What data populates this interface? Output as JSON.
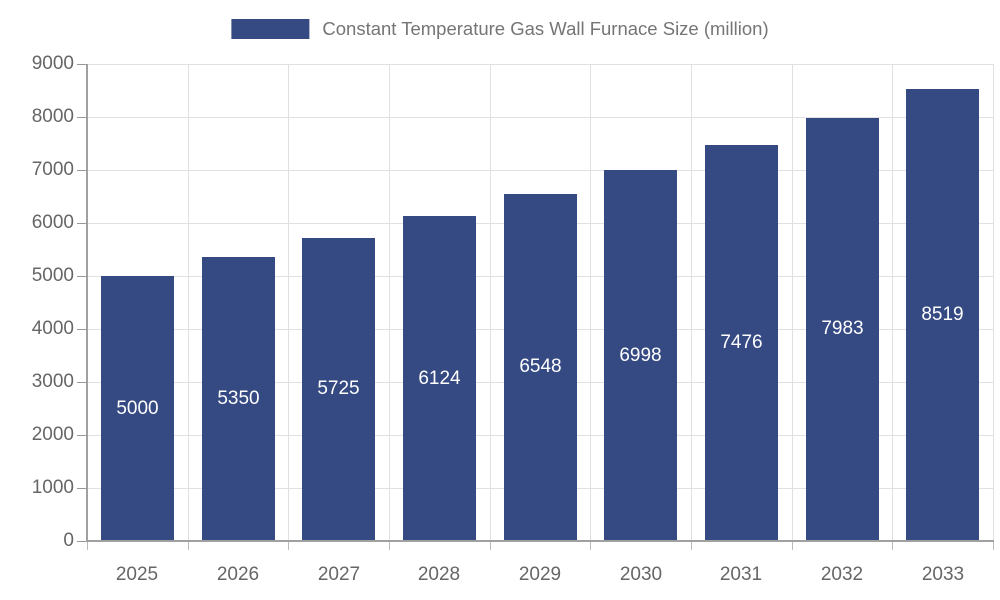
{
  "chart_data": {
    "type": "bar",
    "title": "Constant Temperature Gas Wall Furnace Size (million)",
    "legend": [
      "Constant Temperature Gas Wall Furnace Size (million)"
    ],
    "legend_position": "top",
    "categories": [
      "2025",
      "2026",
      "2027",
      "2028",
      "2029",
      "2030",
      "2031",
      "2032",
      "2033"
    ],
    "values": [
      5000,
      5350,
      5725,
      6124,
      6548,
      6998,
      7476,
      7983,
      8519
    ],
    "xlabel": "",
    "ylabel": "",
    "ylim": [
      0,
      9000
    ],
    "yticks": [
      0,
      1000,
      2000,
      3000,
      4000,
      5000,
      6000,
      7000,
      8000,
      9000
    ],
    "grid": true,
    "value_labels": "inside-center",
    "bar_color": "#354983",
    "value_label_color": "#ffffff",
    "axis_text_color": "#666666",
    "legend_text_color": "#757575",
    "gridline_color": "#e0e0e0",
    "axis_line_color": "#a0a0a0",
    "background_color": "#ffffff"
  }
}
